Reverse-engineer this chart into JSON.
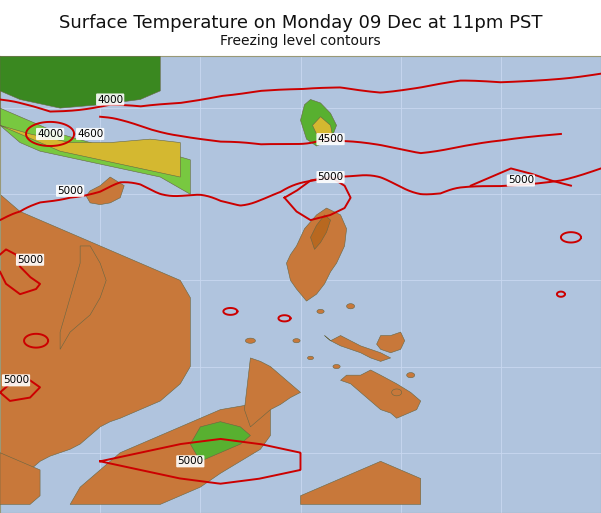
{
  "title": "Surface Temperature on Monday 09 Dec at 11pm PST",
  "subtitle": "Freezing level contours",
  "title_fontsize": 13,
  "subtitle_fontsize": 10,
  "fig_width": 6.01,
  "fig_height": 5.13,
  "dpi": 100,
  "background_color": "#ffffff",
  "ocean_color": "#b0c4de",
  "contour_color": "#cc0000",
  "contour_linewidth": 1.4,
  "title_color": "#111111",
  "xlim": [
    105.0,
    135.0
  ],
  "ylim": [
    1.5,
    28.0
  ],
  "grid_lons": [
    110,
    115,
    120,
    125,
    130
  ],
  "grid_lats": [
    5,
    10,
    15,
    20,
    25
  ],
  "land_brown": "#c8783a",
  "land_brown_dark": "#b86820",
  "land_yellow": "#d4b830",
  "land_green_bright": "#78c840",
  "land_green_dark": "#3a8820",
  "land_green_mid": "#58b030",
  "border_color": "#888866",
  "title_box_color": "#f0f0f0"
}
